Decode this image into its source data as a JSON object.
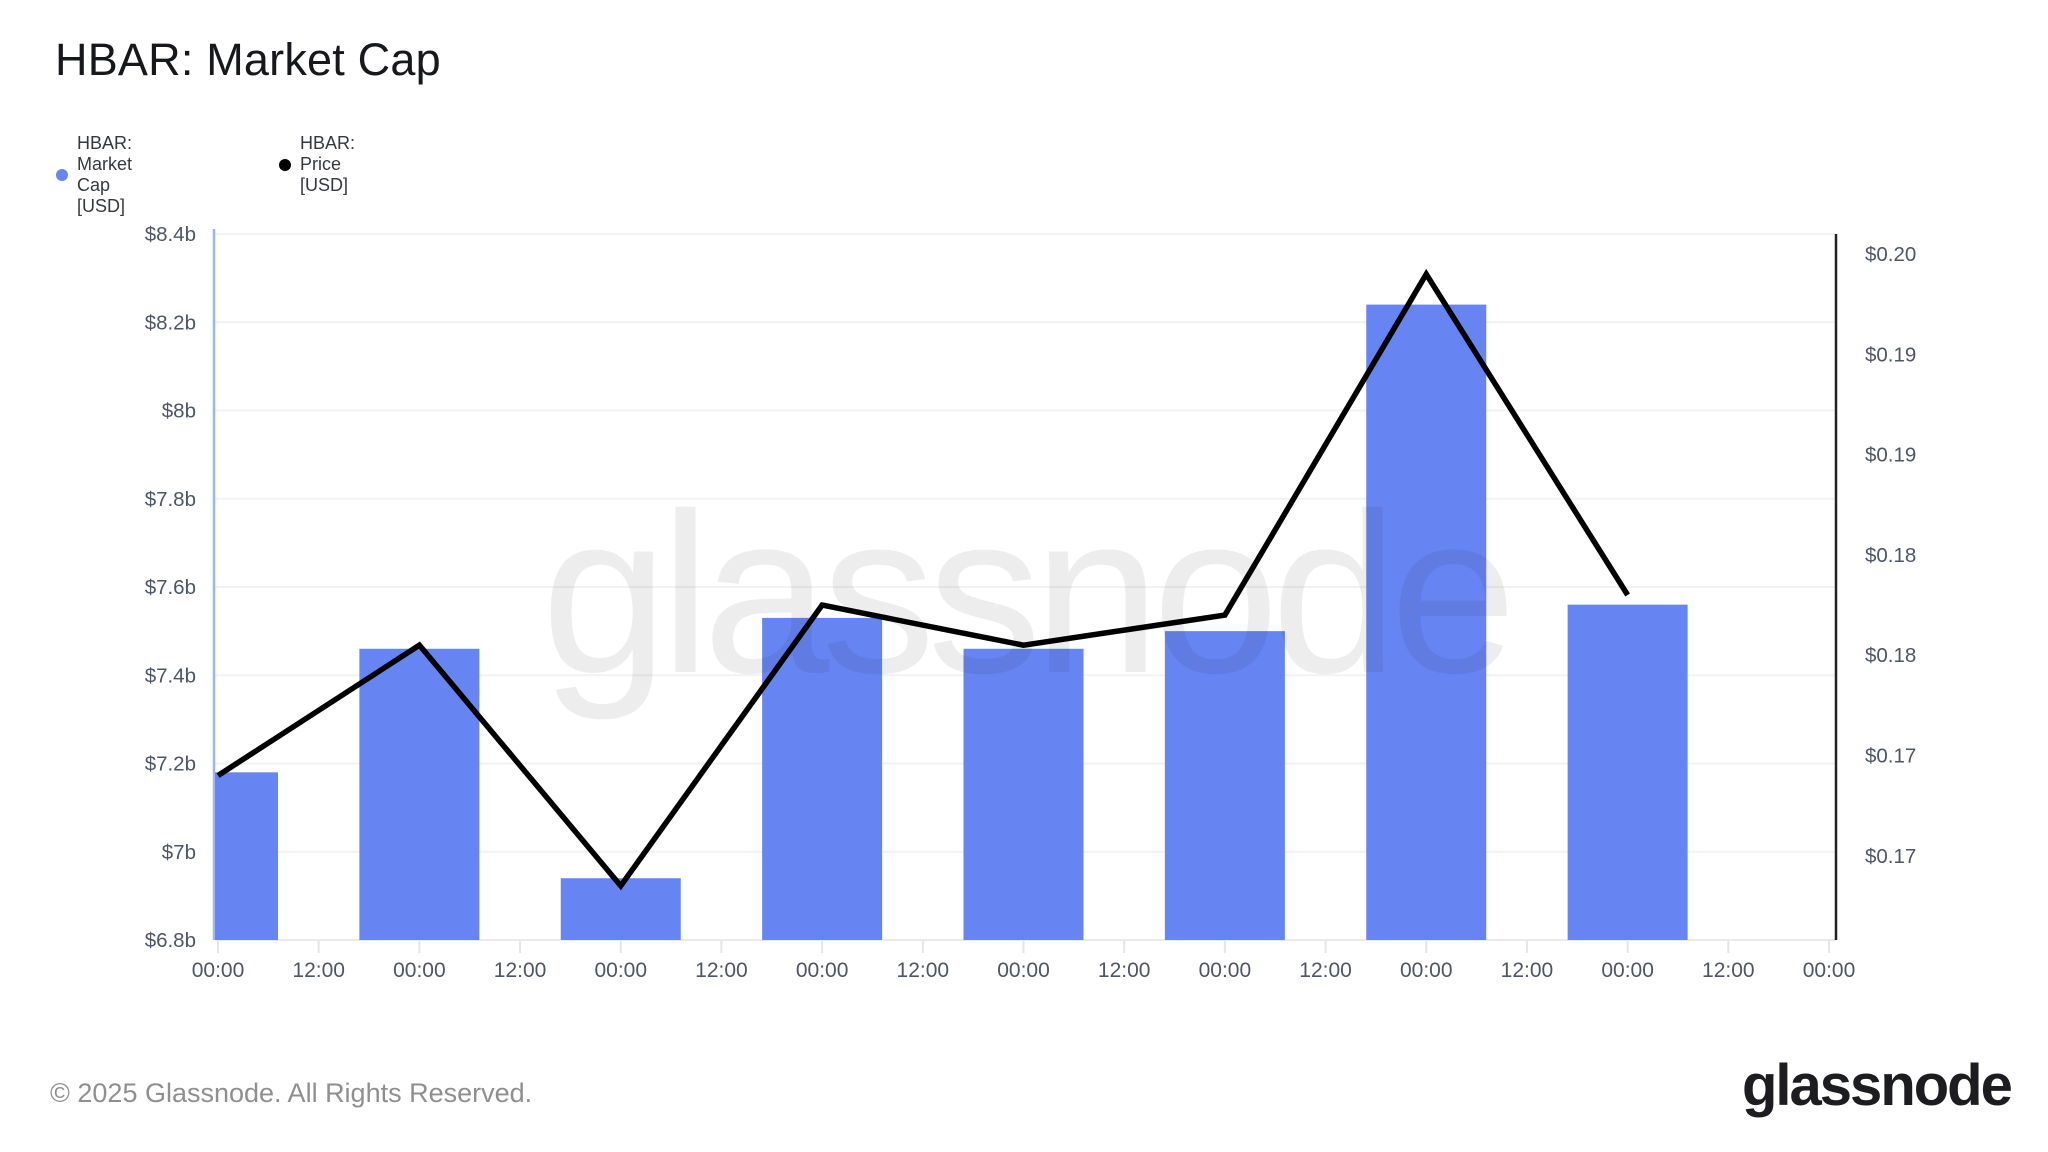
{
  "page": {
    "title": "HBAR: Market Cap",
    "footer_copyright": "© 2025 Glassnode. All Rights Reserved.",
    "brand_logo": "glassnode"
  },
  "legend": {
    "position": "top-left",
    "items": [
      {
        "label": "HBAR: Market Cap [USD]",
        "marker": "circle",
        "color": "#6685F2"
      },
      {
        "label": "HBAR: Price [USD]",
        "marker": "circle",
        "color": "#000000"
      }
    ]
  },
  "chart_data": {
    "type": "mixed",
    "title": "HBAR: Market Cap",
    "grid": "horizontal",
    "watermark": {
      "text": "glassnode",
      "color_opacity": 0.08
    },
    "x_axis": {
      "tick_labels": [
        "00:00",
        "12:00",
        "00:00",
        "12:00",
        "00:00",
        "12:00",
        "00:00",
        "12:00",
        "00:00",
        "12:00",
        "00:00",
        "12:00",
        "00:00",
        "12:00",
        "00:00",
        "12:00",
        "00:00"
      ],
      "bar_tick_indices": [
        0,
        2,
        4,
        6,
        8,
        10,
        12,
        14
      ]
    },
    "left_axis": {
      "title": "Market Cap [USD]",
      "min": 6.8,
      "max": 8.4,
      "unit": "billion USD",
      "axis_line_color": "#9FB4F2",
      "ticks": [
        {
          "value": 8.4,
          "label": "$8.4b"
        },
        {
          "value": 8.2,
          "label": "$8.2b"
        },
        {
          "value": 8.0,
          "label": "$8b"
        },
        {
          "value": 7.8,
          "label": "$7.8b"
        },
        {
          "value": 7.6,
          "label": "$7.6b"
        },
        {
          "value": 7.4,
          "label": "$7.4b"
        },
        {
          "value": 7.2,
          "label": "$7.2b"
        },
        {
          "value": 7.0,
          "label": "$7b"
        },
        {
          "value": 6.8,
          "label": "$6.8b"
        }
      ]
    },
    "right_axis": {
      "title": "Price [USD]",
      "min": 0.1638,
      "max": 0.199,
      "unit": "USD",
      "axis_line_color": "#222222",
      "ticks": [
        {
          "value": 0.198,
          "label": "$0.20"
        },
        {
          "value": 0.193,
          "label": "$0.19"
        },
        {
          "value": 0.188,
          "label": "$0.19"
        },
        {
          "value": 0.183,
          "label": "$0.18"
        },
        {
          "value": 0.178,
          "label": "$0.18"
        },
        {
          "value": 0.173,
          "label": "$0.17"
        },
        {
          "value": 0.168,
          "label": "$0.17"
        }
      ]
    },
    "series": [
      {
        "name": "HBAR: Market Cap [USD]",
        "type": "bar",
        "axis": "left",
        "color": "#6685F2",
        "values_billions": [
          7.18,
          7.46,
          6.94,
          7.53,
          7.46,
          7.5,
          8.24,
          7.56
        ]
      },
      {
        "name": "HBAR: Price [USD]",
        "type": "line",
        "axis": "right",
        "color": "#000000",
        "values_usd": [
          0.172,
          0.1785,
          0.1665,
          0.1805,
          0.1785,
          0.18,
          0.197,
          0.181
        ]
      }
    ]
  }
}
